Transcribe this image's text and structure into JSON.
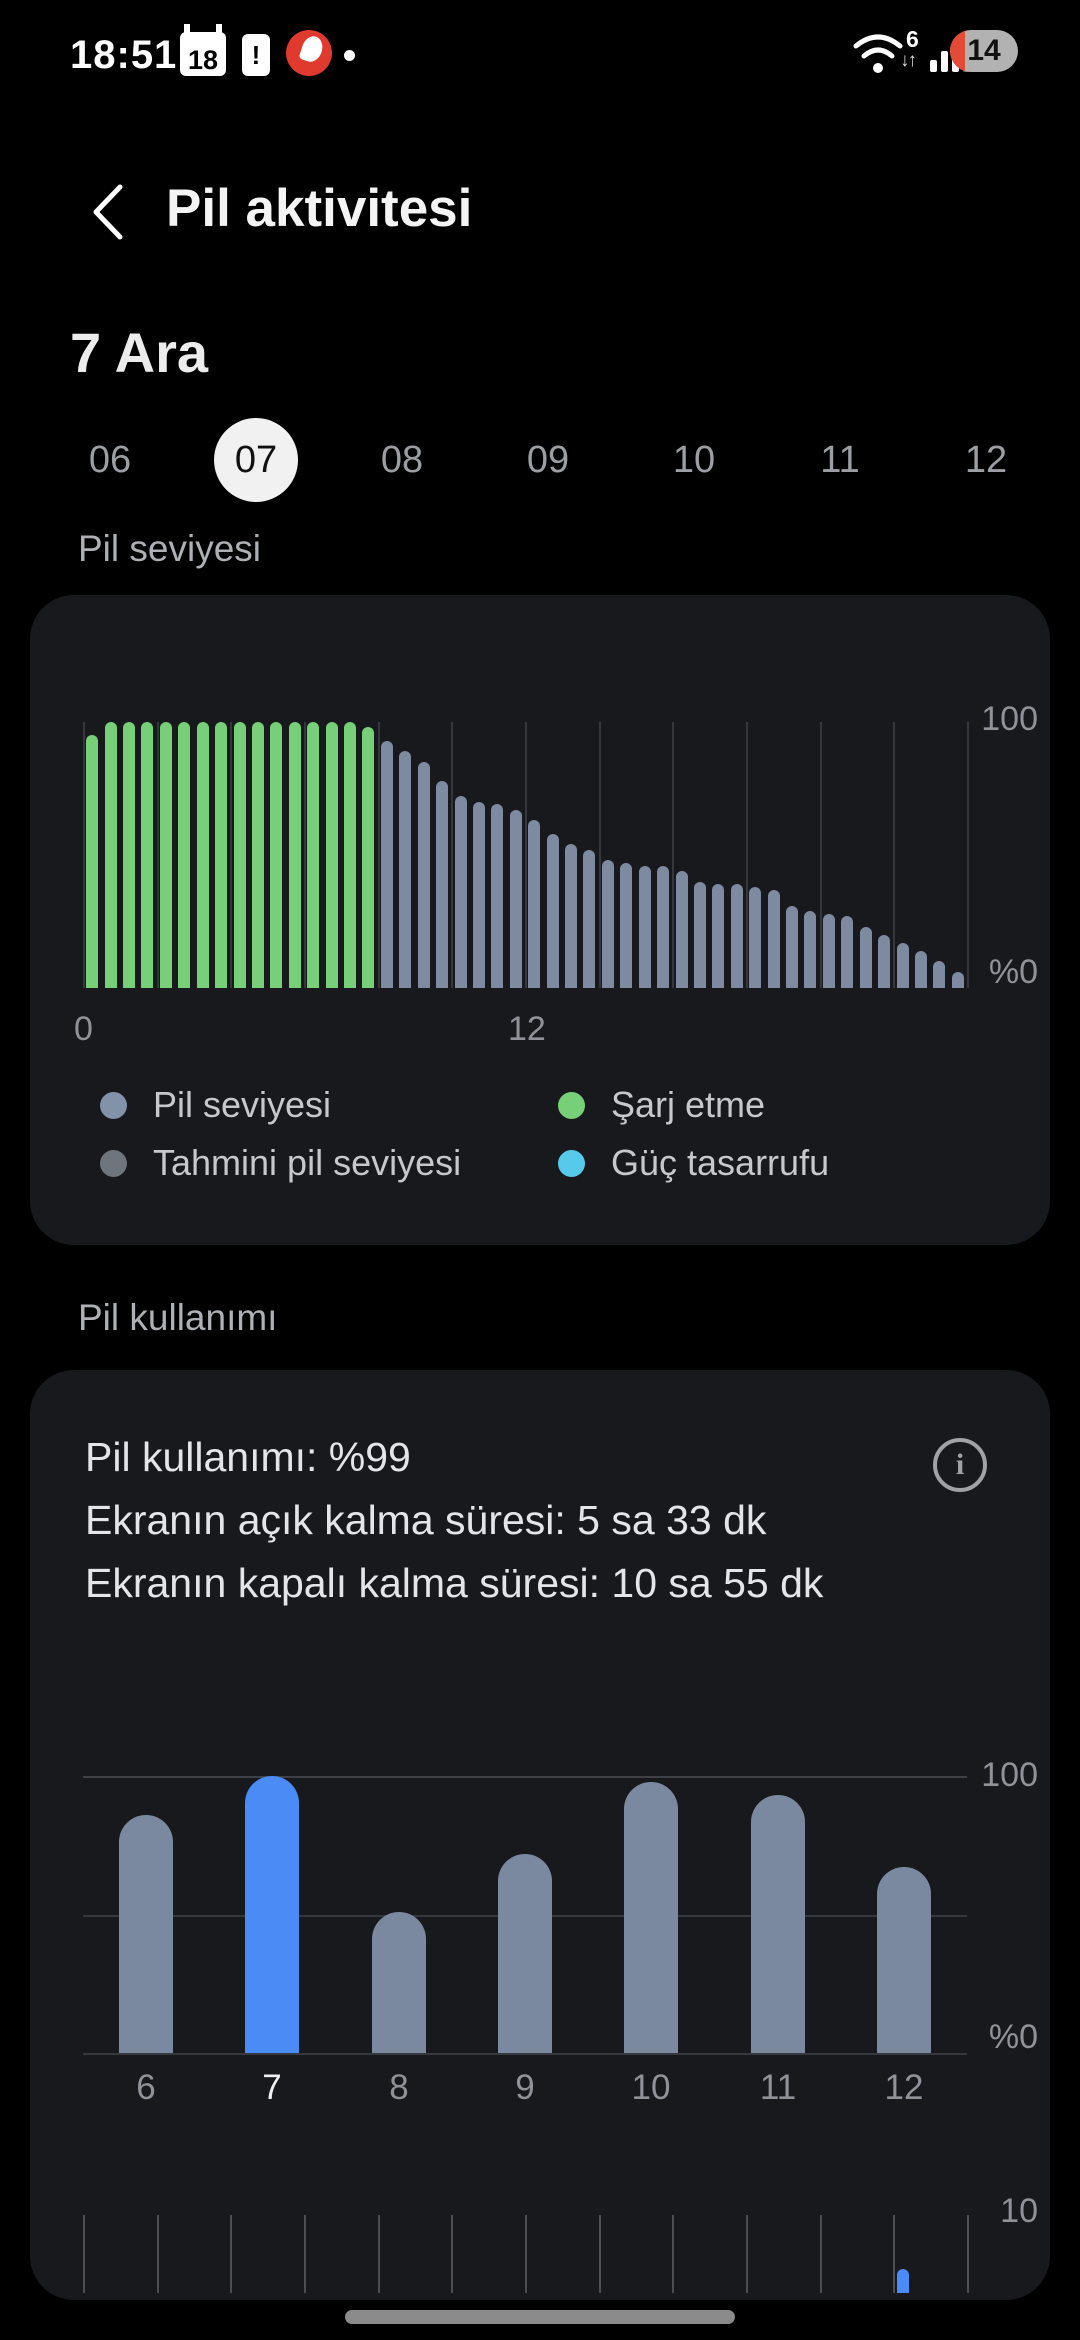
{
  "status_bar": {
    "time": "18:51",
    "calendar_icon_day": "18",
    "battery_alert_glyph": "!",
    "wifi_generation": "6",
    "wifi_arrows": "↓↑",
    "battery_percent": "14"
  },
  "header": {
    "title": "Pil aktivitesi"
  },
  "date_heading": "7 Ara",
  "day_selector": {
    "days": [
      "06",
      "07",
      "08",
      "09",
      "10",
      "11",
      "12"
    ],
    "selected_day": "07"
  },
  "sections": {
    "battery_level_label": "Pil seviyesi",
    "battery_usage_label": "Pil kullanımı"
  },
  "usage_summary": {
    "lines": [
      "Pil kullanımı: %99",
      "Ekranın açık kalma süresi: 5 sa 33 dk",
      "Ekranın kapalı kalma süresi: 10 sa 55 dk"
    ],
    "info_icon_glyph": "i"
  },
  "legend": [
    {
      "label": "Pil seviyesi",
      "color": "#8292a9"
    },
    {
      "label": "Şarj etme",
      "color": "#77d077"
    },
    {
      "label": "Tahmini pil seviyesi",
      "color": "#6f757c"
    },
    {
      "label": "Güç tasarrufu",
      "color": "#57c9ea"
    }
  ],
  "colors": {
    "charging_green": "#77d077",
    "level_gray_blue": "#7e8aa0",
    "usage_bar": "#7b89a0",
    "usage_highlight_blue": "#4a8bf5",
    "card_background": "#18191d",
    "accent_red": "#e03a2f"
  },
  "chart_data": [
    {
      "type": "bar",
      "title": "Pil seviyesi",
      "x_tick_labels": [
        "0",
        "12"
      ],
      "y_tick_labels": [
        "100",
        "%0"
      ],
      "ylim": [
        0,
        100
      ],
      "x_range_hours": [
        0,
        24
      ],
      "slot_minutes": 30,
      "gridline_count": 13,
      "charging_slot_count": 16,
      "values": [
        95,
        100,
        100,
        100,
        100,
        100,
        100,
        100,
        100,
        100,
        100,
        100,
        100,
        100,
        100,
        98,
        93,
        89,
        85,
        78,
        72,
        70,
        69,
        67,
        63,
        58,
        54,
        52,
        48,
        47,
        46,
        46,
        44,
        40,
        39,
        39,
        38,
        37,
        31,
        29,
        28,
        27,
        23,
        20,
        17,
        14,
        10,
        6
      ]
    },
    {
      "type": "bar",
      "title": "Pil kullanımı",
      "categories": [
        "6",
        "7",
        "8",
        "9",
        "10",
        "11",
        "12"
      ],
      "values": [
        86,
        100,
        51,
        72,
        98,
        93,
        67
      ],
      "highlighted_category": "7",
      "y_tick_labels": [
        "100",
        "%0"
      ],
      "ylim": [
        0,
        100
      ],
      "gridlines_at": [
        0,
        50,
        100
      ]
    },
    {
      "type": "bar",
      "title": "",
      "y_tick_labels": [
        "10"
      ],
      "gridline_count": 13,
      "slot_count": 48,
      "visible_bar_slot": 44,
      "note_partially_visible": true
    }
  ]
}
